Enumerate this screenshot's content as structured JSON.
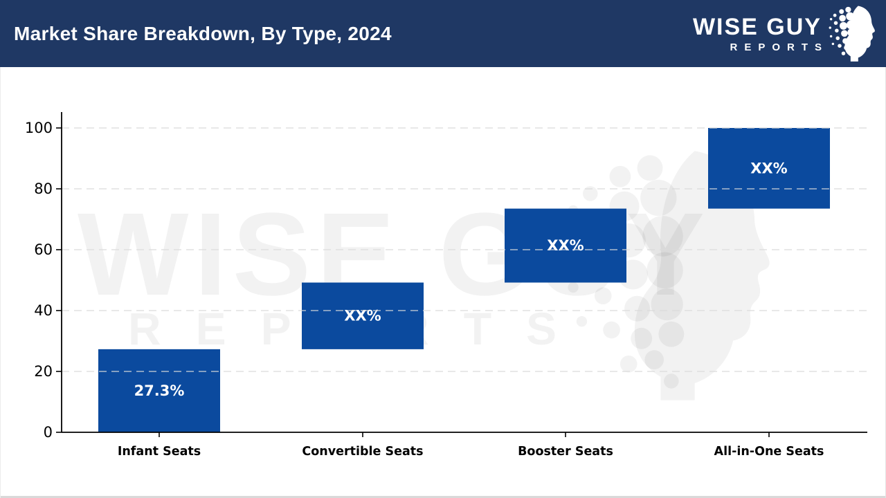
{
  "page": {
    "background": "#ffffff"
  },
  "header": {
    "title": "Market Share Breakdown, By Type, 2024",
    "background": "#1f3864",
    "logo": {
      "line1": "WISE GUY",
      "line2": "REPORTS"
    }
  },
  "watermark": {
    "line1": "WISE GUY",
    "line2": "REPORTS"
  },
  "colors": {
    "header_bg": "#1f3864",
    "bar": "#0b4a9e",
    "bar_label": "#ffffff",
    "grid": "#d9d9d9",
    "axis": "#000000",
    "watermark": "rgba(0,0,0,0.05)",
    "bottom_strip": "#d9d9d9"
  },
  "chart_data": {
    "type": "bar",
    "subtype": "waterfall",
    "title": "Market Share Breakdown, By Type, 2024",
    "categories": [
      "Infant Seats",
      "Convertible Seats",
      "Booster Seats",
      "All-in-One Seats"
    ],
    "segments": [
      {
        "category": "Infant Seats",
        "start": 0,
        "end": 27.3,
        "label": "27.3%"
      },
      {
        "category": "Convertible Seats",
        "start": 27.3,
        "end": 49.2,
        "label": "XX%"
      },
      {
        "category": "Booster Seats",
        "start": 49.2,
        "end": 73.5,
        "label": "XX%"
      },
      {
        "category": "All-in-One Seats",
        "start": 73.5,
        "end": 100,
        "label": "XX%"
      }
    ],
    "yticks": [
      0,
      20,
      40,
      60,
      80,
      100
    ],
    "ylim": [
      0,
      105
    ],
    "xlabel": "",
    "ylabel": "",
    "legend": "none",
    "grid": {
      "horizontal": true,
      "style": "dashed",
      "over_bars": true
    }
  }
}
